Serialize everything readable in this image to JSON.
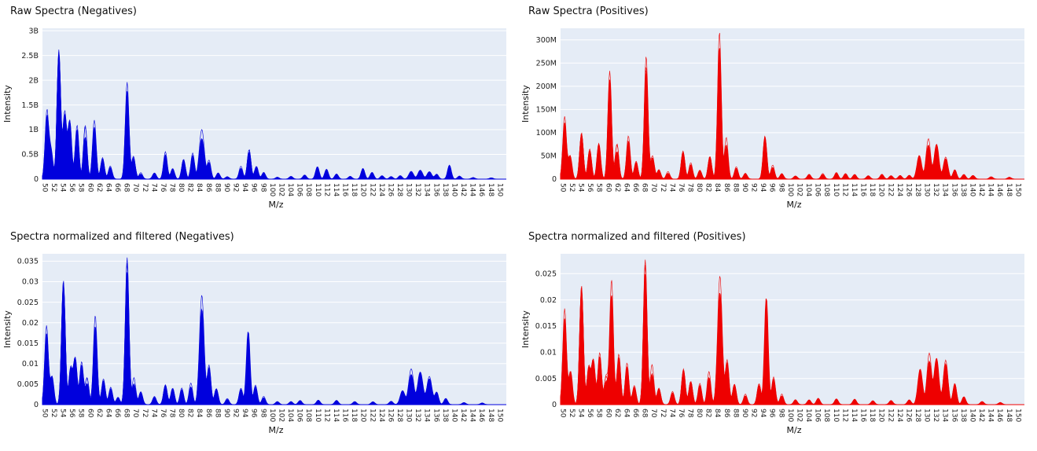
{
  "figure": {
    "background": "#ffffff",
    "plot_background": "#e5ecf6",
    "grid_color": "#ffffff",
    "text_color": "#111111"
  },
  "axes_shared": {
    "xlim": [
      49.4,
      151.3
    ],
    "x_ticks": [
      50,
      52,
      54,
      56,
      58,
      60,
      62,
      64,
      66,
      68,
      70,
      72,
      74,
      76,
      78,
      80,
      82,
      84,
      86,
      88,
      90,
      92,
      94,
      96,
      98,
      100,
      102,
      104,
      106,
      108,
      110,
      112,
      114,
      116,
      118,
      120,
      122,
      124,
      126,
      128,
      130,
      132,
      134,
      136,
      138,
      140,
      142,
      144,
      146,
      148,
      150
    ]
  },
  "chart_data": [
    {
      "type": "area",
      "title": "Raw Spectra (Negatives)",
      "xlabel": "M/z",
      "ylabel": "Intensity",
      "color": "#0000dd",
      "ylim": [
        0,
        3050000000.0
      ],
      "y_ticks": [
        {
          "value": 0,
          "label": "0"
        },
        {
          "value": 500000000.0,
          "label": "0.5B"
        },
        {
          "value": 1000000000.0,
          "label": "1B"
        },
        {
          "value": 1500000000.0,
          "label": "1.5B"
        },
        {
          "value": 2000000000.0,
          "label": "2B"
        },
        {
          "value": 2500000000.0,
          "label": "2.5B"
        },
        {
          "value": 3000000000.0,
          "label": "3B"
        }
      ],
      "peaks": [
        [
          50.4,
          1450000000.0
        ],
        [
          51.3,
          600000000.0
        ],
        [
          53,
          2750000000.0
        ],
        [
          54.3,
          1500000000.0
        ],
        [
          55.4,
          1250000000.0
        ],
        [
          57,
          1100000000.0
        ],
        [
          58.8,
          1000000000.0
        ],
        [
          60.8,
          1150000000.0
        ],
        [
          62.6,
          450000000.0
        ],
        [
          64.3,
          250000000.0
        ],
        [
          68,
          2150000000.0
        ],
        [
          69.4,
          450000000.0
        ],
        [
          71,
          120000000.0
        ],
        [
          74,
          120000000.0
        ],
        [
          76.4,
          550000000.0
        ],
        [
          78,
          220000000.0
        ],
        [
          80.4,
          450000000.0
        ],
        [
          82.4,
          520000000.0
        ],
        [
          84.4,
          950000000.0,
          0.55
        ],
        [
          86,
          350000000.0
        ],
        [
          88,
          120000000.0
        ],
        [
          90,
          50000000.0
        ],
        [
          93,
          260000000.0
        ],
        [
          94.8,
          600000000.0
        ],
        [
          96.4,
          300000000.0
        ],
        [
          98,
          130000000.0
        ],
        [
          101,
          40000000.0
        ],
        [
          104,
          60000000.0
        ],
        [
          107,
          90000000.0
        ],
        [
          109.8,
          250000000.0
        ],
        [
          111.8,
          220000000.0
        ],
        [
          114,
          100000000.0
        ],
        [
          117,
          60000000.0
        ],
        [
          119.8,
          220000000.0
        ],
        [
          121.8,
          150000000.0
        ],
        [
          124,
          80000000.0
        ],
        [
          126,
          50000000.0
        ],
        [
          128,
          80000000.0
        ],
        [
          130.4,
          150000000.0,
          0.5
        ],
        [
          132.4,
          180000000.0,
          0.5
        ],
        [
          134.4,
          150000000.0,
          0.5
        ],
        [
          136,
          100000000.0
        ],
        [
          138.8,
          280000000.0
        ],
        [
          141,
          60000000.0
        ],
        [
          144,
          30000000.0
        ],
        [
          148,
          25000000.0
        ]
      ]
    },
    {
      "type": "area",
      "title": "Raw Spectra (Positives)",
      "xlabel": "M/z",
      "ylabel": "Intensity",
      "color": "#ee0000",
      "ylim": [
        0,
        325000000.0
      ],
      "y_ticks": [
        {
          "value": 0,
          "label": "0"
        },
        {
          "value": 50000000.0,
          "label": "50M"
        },
        {
          "value": 100000000.0,
          "label": "100M"
        },
        {
          "value": 150000000.0,
          "label": "150M"
        },
        {
          "value": 200000000.0,
          "label": "200M"
        },
        {
          "value": 250000000.0,
          "label": "250M"
        },
        {
          "value": 300000000.0,
          "label": "300M"
        }
      ],
      "peaks": [
        [
          50.3,
          140000000.0
        ],
        [
          51.5,
          55000000.0
        ],
        [
          54,
          105000000.0
        ],
        [
          55.8,
          72000000.0
        ],
        [
          57.8,
          82000000.0
        ],
        [
          60.2,
          235000000.0
        ],
        [
          61.8,
          70000000.0
        ],
        [
          64.3,
          90000000.0
        ],
        [
          66,
          40000000.0
        ],
        [
          68.2,
          250000000.0
        ],
        [
          69.6,
          55000000.0
        ],
        [
          71,
          20000000.0
        ],
        [
          73,
          15000000.0
        ],
        [
          76.3,
          58000000.0
        ],
        [
          78,
          35000000.0
        ],
        [
          80,
          20000000.0
        ],
        [
          82.2,
          55000000.0
        ],
        [
          84.3,
          312000000.0
        ],
        [
          85.8,
          85000000.0
        ],
        [
          88,
          25000000.0
        ],
        [
          90,
          12000000.0
        ],
        [
          94.3,
          95000000.0
        ],
        [
          96,
          30000000.0
        ],
        [
          98,
          12000000.0
        ],
        [
          101,
          8000000.0
        ],
        [
          104,
          10000000.0
        ],
        [
          107,
          12000000.0
        ],
        [
          110,
          15000000.0
        ],
        [
          112,
          13000000.0
        ],
        [
          114,
          10000000.0
        ],
        [
          117,
          8000000.0
        ],
        [
          120,
          10000000.0
        ],
        [
          122,
          8000000.0
        ],
        [
          124,
          8000000.0
        ],
        [
          126,
          9000000.0
        ],
        [
          128.2,
          60000000.0,
          0.5
        ],
        [
          130.2,
          80000000.0,
          0.5
        ],
        [
          132,
          85000000.0,
          0.5
        ],
        [
          134,
          45000000.0,
          0.5
        ],
        [
          136,
          20000000.0
        ],
        [
          138,
          10000000.0
        ],
        [
          140,
          8000000.0
        ],
        [
          144,
          5000000.0
        ],
        [
          148,
          4000000.0
        ]
      ]
    },
    {
      "type": "area",
      "title": "Spectra normalized and filtered (Negatives)",
      "xlabel": "M/z",
      "ylabel": "Intensity",
      "color": "#0000dd",
      "ylim": [
        0,
        0.0368
      ],
      "y_ticks": [
        {
          "value": 0,
          "label": "0"
        },
        {
          "value": 0.005,
          "label": "0.005"
        },
        {
          "value": 0.01,
          "label": "0.01"
        },
        {
          "value": 0.015,
          "label": "0.015"
        },
        {
          "value": 0.02,
          "label": "0.02"
        },
        {
          "value": 0.025,
          "label": "0.025"
        },
        {
          "value": 0.03,
          "label": "0.03"
        },
        {
          "value": 0.035,
          "label": "0.035"
        }
      ],
      "peaks": [
        [
          50.3,
          0.02
        ],
        [
          51.5,
          0.0075
        ],
        [
          54,
          0.032
        ],
        [
          55.6,
          0.01
        ],
        [
          56.6,
          0.012
        ],
        [
          58,
          0.0105
        ],
        [
          59.2,
          0.006
        ],
        [
          61,
          0.021
        ],
        [
          62.8,
          0.0065
        ],
        [
          64.4,
          0.004
        ],
        [
          66,
          0.002
        ],
        [
          68,
          0.035
        ],
        [
          69.5,
          0.006
        ],
        [
          71,
          0.003
        ],
        [
          74,
          0.002
        ],
        [
          76.4,
          0.005
        ],
        [
          78,
          0.0045
        ],
        [
          80,
          0.004
        ],
        [
          82,
          0.005
        ],
        [
          84.4,
          0.025,
          0.5
        ],
        [
          86,
          0.009
        ],
        [
          87.6,
          0.004
        ],
        [
          90,
          0.0015
        ],
        [
          93,
          0.004
        ],
        [
          94.6,
          0.021
        ],
        [
          96.2,
          0.0045
        ],
        [
          98,
          0.002
        ],
        [
          101,
          0.0008
        ],
        [
          104,
          0.0008
        ],
        [
          106,
          0.001
        ],
        [
          110,
          0.0012
        ],
        [
          114,
          0.001
        ],
        [
          118,
          0.0008
        ],
        [
          122,
          0.0007
        ],
        [
          126,
          0.0009
        ],
        [
          128.5,
          0.004,
          0.5
        ],
        [
          130.4,
          0.008,
          0.55
        ],
        [
          132.4,
          0.009,
          0.55
        ],
        [
          134.4,
          0.0065,
          0.55
        ],
        [
          136,
          0.003
        ],
        [
          138,
          0.0015
        ],
        [
          142,
          0.0005
        ],
        [
          146,
          0.0004
        ]
      ]
    },
    {
      "type": "area",
      "title": "Spectra normalized and filtered (Positives)",
      "xlabel": "M/z",
      "ylabel": "Intensity",
      "color": "#ee0000",
      "ylim": [
        0,
        0.0288
      ],
      "y_ticks": [
        {
          "value": 0,
          "label": "0"
        },
        {
          "value": 0.005,
          "label": "0.005"
        },
        {
          "value": 0.01,
          "label": "0.01"
        },
        {
          "value": 0.015,
          "label": "0.015"
        },
        {
          "value": 0.02,
          "label": "0.02"
        },
        {
          "value": 0.025,
          "label": "0.025"
        }
      ],
      "peaks": [
        [
          50.3,
          0.019
        ],
        [
          51.6,
          0.007
        ],
        [
          54,
          0.024
        ],
        [
          55.6,
          0.008
        ],
        [
          56.6,
          0.009
        ],
        [
          58,
          0.01
        ],
        [
          59.4,
          0.005
        ],
        [
          60.6,
          0.023
        ],
        [
          62.2,
          0.01
        ],
        [
          64,
          0.0075
        ],
        [
          65.6,
          0.004
        ],
        [
          68,
          0.027
        ],
        [
          69.5,
          0.007
        ],
        [
          71,
          0.003
        ],
        [
          74,
          0.0025
        ],
        [
          76.4,
          0.007
        ],
        [
          78,
          0.005
        ],
        [
          80,
          0.004
        ],
        [
          82,
          0.006
        ],
        [
          84.4,
          0.023,
          0.5
        ],
        [
          86,
          0.008
        ],
        [
          87.6,
          0.004
        ],
        [
          90,
          0.002
        ],
        [
          93,
          0.004
        ],
        [
          94.6,
          0.024
        ],
        [
          96.2,
          0.005
        ],
        [
          98,
          0.002
        ],
        [
          101,
          0.001
        ],
        [
          104,
          0.001
        ],
        [
          106,
          0.0012
        ],
        [
          110,
          0.0012
        ],
        [
          114,
          0.001
        ],
        [
          118,
          0.0008
        ],
        [
          122,
          0.0008
        ],
        [
          126,
          0.001
        ],
        [
          128.4,
          0.008,
          0.5
        ],
        [
          130.4,
          0.009,
          0.5
        ],
        [
          132,
          0.01,
          0.5
        ],
        [
          134,
          0.008,
          0.5
        ],
        [
          136,
          0.004
        ],
        [
          138,
          0.0015
        ],
        [
          142,
          0.0006
        ],
        [
          146,
          0.0004
        ]
      ]
    }
  ]
}
